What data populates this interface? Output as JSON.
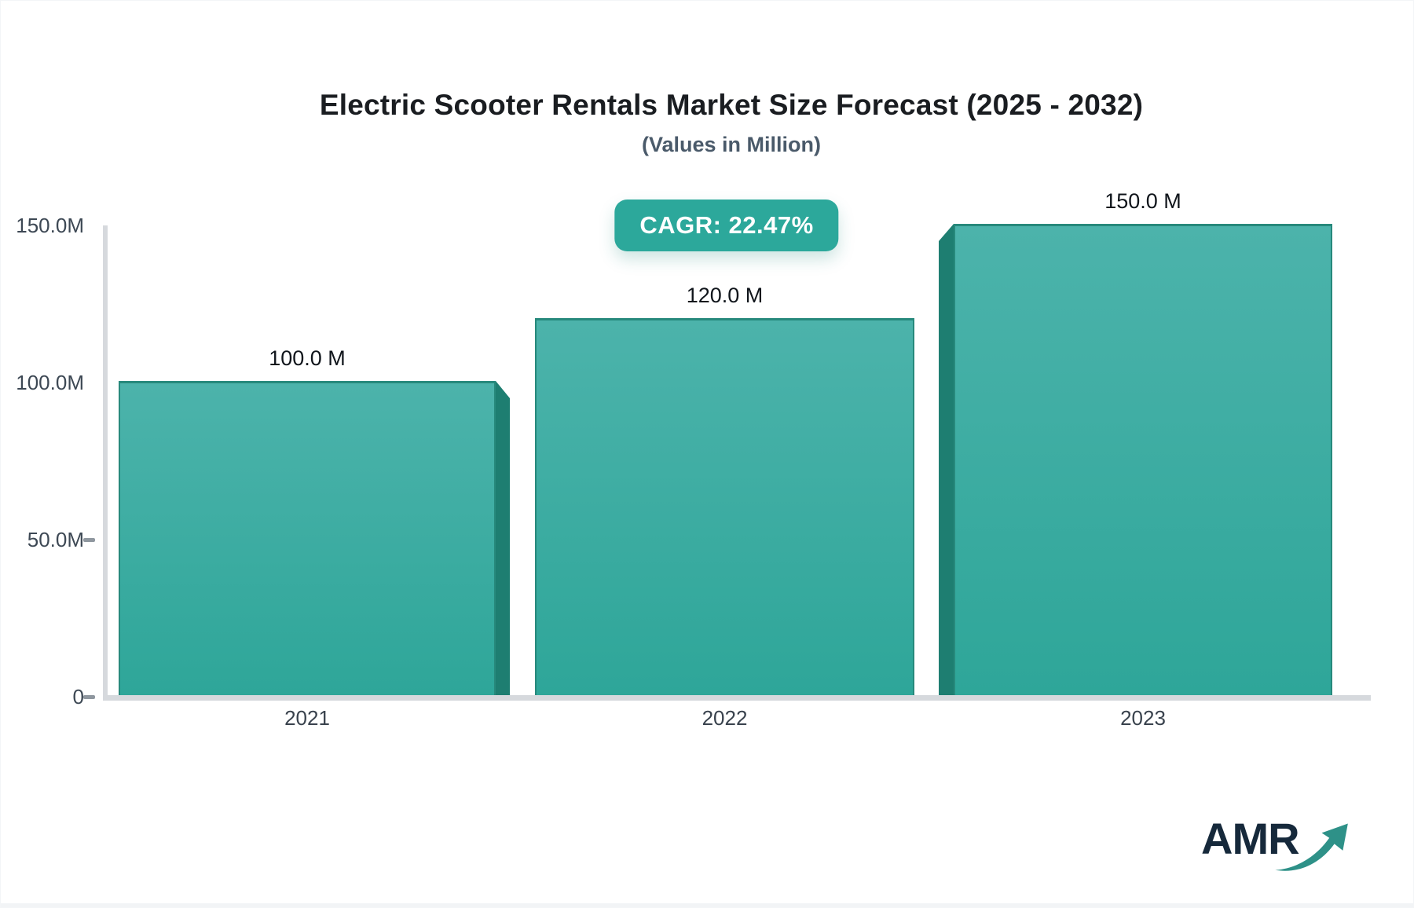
{
  "title": "Electric Scooter Rentals Market Size Forecast (2025 - 2032)",
  "subtitle": "(Values in Million)",
  "cagr_badge": "CAGR: 22.47%",
  "logo": {
    "text": "AMR"
  },
  "colors": {
    "bar_top": "#4cb3ab",
    "bar_bottom": "#2ea699",
    "bar_side": "#1e7e71",
    "bar_border": "#27897c",
    "badge_bg": "#2ca89b",
    "axis": "#d6d9dd",
    "title_text": "#1a1d21",
    "subtitle_text": "#4a5a6a",
    "arrow": "#2e9188"
  },
  "chart_data": {
    "type": "bar",
    "categories": [
      "2021",
      "2022",
      "2023"
    ],
    "values": [
      100.0,
      120.0,
      150.0
    ],
    "unit": "Million",
    "bar_labels": [
      "100.0 M",
      "120.0 M",
      "150.0 M"
    ],
    "title": "Electric Scooter Rentals Market Size Forecast (2025 - 2032)",
    "subtitle": "(Values in Million)",
    "xlabel": "",
    "ylabel": "",
    "ylim": [
      0,
      150
    ],
    "yticks": [
      "150.0M",
      "100.0M",
      "50.0M",
      "0"
    ],
    "ytick_values": [
      150,
      100,
      50,
      0
    ],
    "grid": false,
    "legend": false,
    "annotation": "CAGR: 22.47%",
    "bar_style": "3d-extruded, teal gradient"
  }
}
